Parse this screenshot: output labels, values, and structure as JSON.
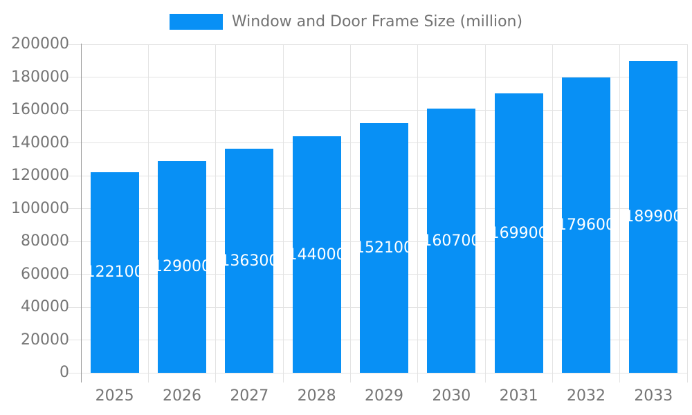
{
  "legend": {
    "label": "Window and Door Frame Size (million)"
  },
  "chart_data": {
    "type": "bar",
    "title": "Window and Door Frame Size (million)",
    "categories": [
      "2025",
      "2026",
      "2027",
      "2028",
      "2029",
      "2030",
      "2031",
      "2032",
      "2033"
    ],
    "values": [
      122100,
      129000,
      136300,
      144000,
      152100,
      160700,
      169900,
      179600,
      189900
    ],
    "bar_labels": [
      "122100",
      "129000",
      "136300",
      "144000",
      "152100",
      "160700",
      "169900",
      "179600",
      "189900"
    ],
    "xlabel": "",
    "ylabel": "",
    "ylim": [
      0,
      200000
    ],
    "yticks": [
      0,
      20000,
      40000,
      60000,
      80000,
      100000,
      120000,
      140000,
      160000,
      180000,
      200000
    ],
    "ytick_labels": [
      "0",
      "20000",
      "40000",
      "60000",
      "80000",
      "100000",
      "120000",
      "140000",
      "160000",
      "180000",
      "200000"
    ],
    "grid": true,
    "legend_position": "top-center",
    "colors": {
      "bar": "#0890f5",
      "grid": "#e3e3e3",
      "axis_line": "#999999",
      "tick_label": "#757575",
      "legend_label": "#737373",
      "bar_label": "#ffffff",
      "background": "#ffffff"
    }
  }
}
